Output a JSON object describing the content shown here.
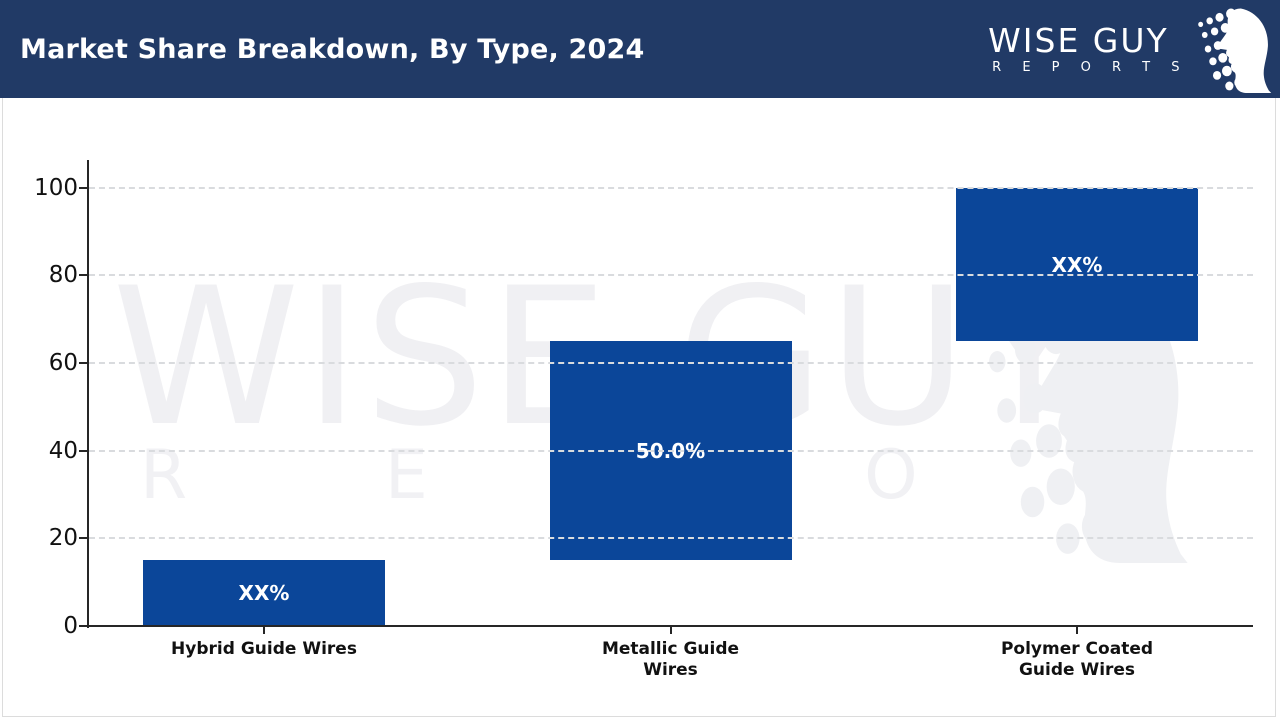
{
  "header": {
    "title": "Market Share Breakdown, By Type, 2024",
    "bg_color": "#213a66",
    "logo": {
      "wordmark": "WISE GUY",
      "subtext": "R E P O R T S"
    }
  },
  "watermark": {
    "wordmark": "WISE GUY",
    "subtext": "R E P O R T S"
  },
  "chart_data": {
    "type": "bar",
    "subtype": "floating-segment-waterfall",
    "title": "Market Share Breakdown, By Type, 2024",
    "categories": [
      "Hybrid Guide Wires",
      "Metallic Guide\nWires",
      "Polymer Coated\nGuide Wires"
    ],
    "segments": [
      {
        "category": "Hybrid Guide Wires",
        "start": 0,
        "end": 15,
        "label": "XX%"
      },
      {
        "category": "Metallic Guide Wires",
        "start": 15,
        "end": 65,
        "label": "50.0%"
      },
      {
        "category": "Polymer Coated Guide Wires",
        "start": 65,
        "end": 100,
        "label": "XX%"
      }
    ],
    "y_ticks": [
      0,
      20,
      40,
      60,
      80,
      100
    ],
    "ylim": [
      0,
      105
    ],
    "xlabel": "",
    "ylabel": "",
    "grid": "horizontal-dashed",
    "legend": "none",
    "bar_color": "#0b4699",
    "bar_label_color": "#ffffff",
    "axis_color": "#262626"
  }
}
